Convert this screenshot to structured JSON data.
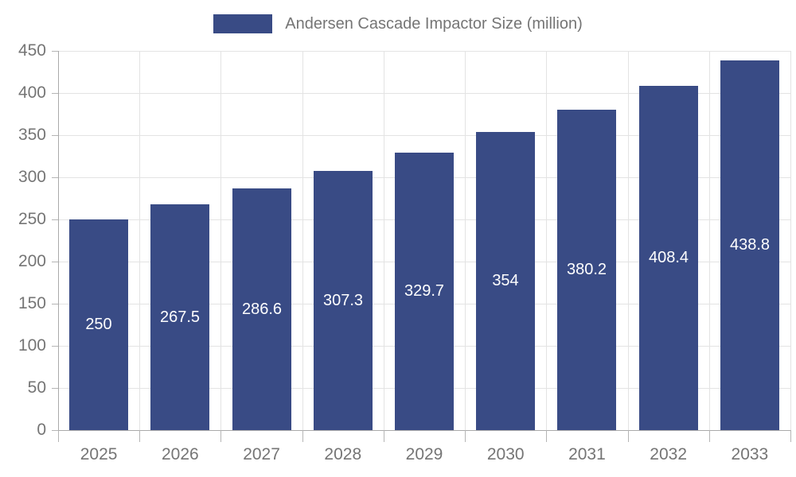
{
  "legend": {
    "label": "Andersen Cascade Impactor Size (million)"
  },
  "colors": {
    "bar": "#394b85",
    "bar_label": "#ffffff",
    "axis_text": "#757575",
    "legend_text": "#757575",
    "gridline": "#e3e3e3",
    "axis_line": "#a9a9a9",
    "tick_mark": "#b5b5b5",
    "background": "#ffffff"
  },
  "chart_data": {
    "type": "bar",
    "title": "",
    "xlabel": "",
    "ylabel": "",
    "series_name": "Andersen Cascade Impactor Size (million)",
    "categories": [
      "2025",
      "2026",
      "2027",
      "2028",
      "2029",
      "2030",
      "2031",
      "2032",
      "2033"
    ],
    "values": [
      250,
      267.5,
      286.6,
      307.3,
      329.7,
      354,
      380.2,
      408.4,
      438.8
    ],
    "value_labels": [
      "250",
      "267.5",
      "286.6",
      "307.3",
      "329.7",
      "354",
      "380.2",
      "408.4",
      "438.8"
    ],
    "ylim": [
      0,
      450
    ],
    "ytick_step": 50,
    "yticks": [
      0,
      50,
      100,
      150,
      200,
      250,
      300,
      350,
      400,
      450
    ],
    "grid": true,
    "legend_position": "top",
    "value_label_placement": "inside-center"
  }
}
